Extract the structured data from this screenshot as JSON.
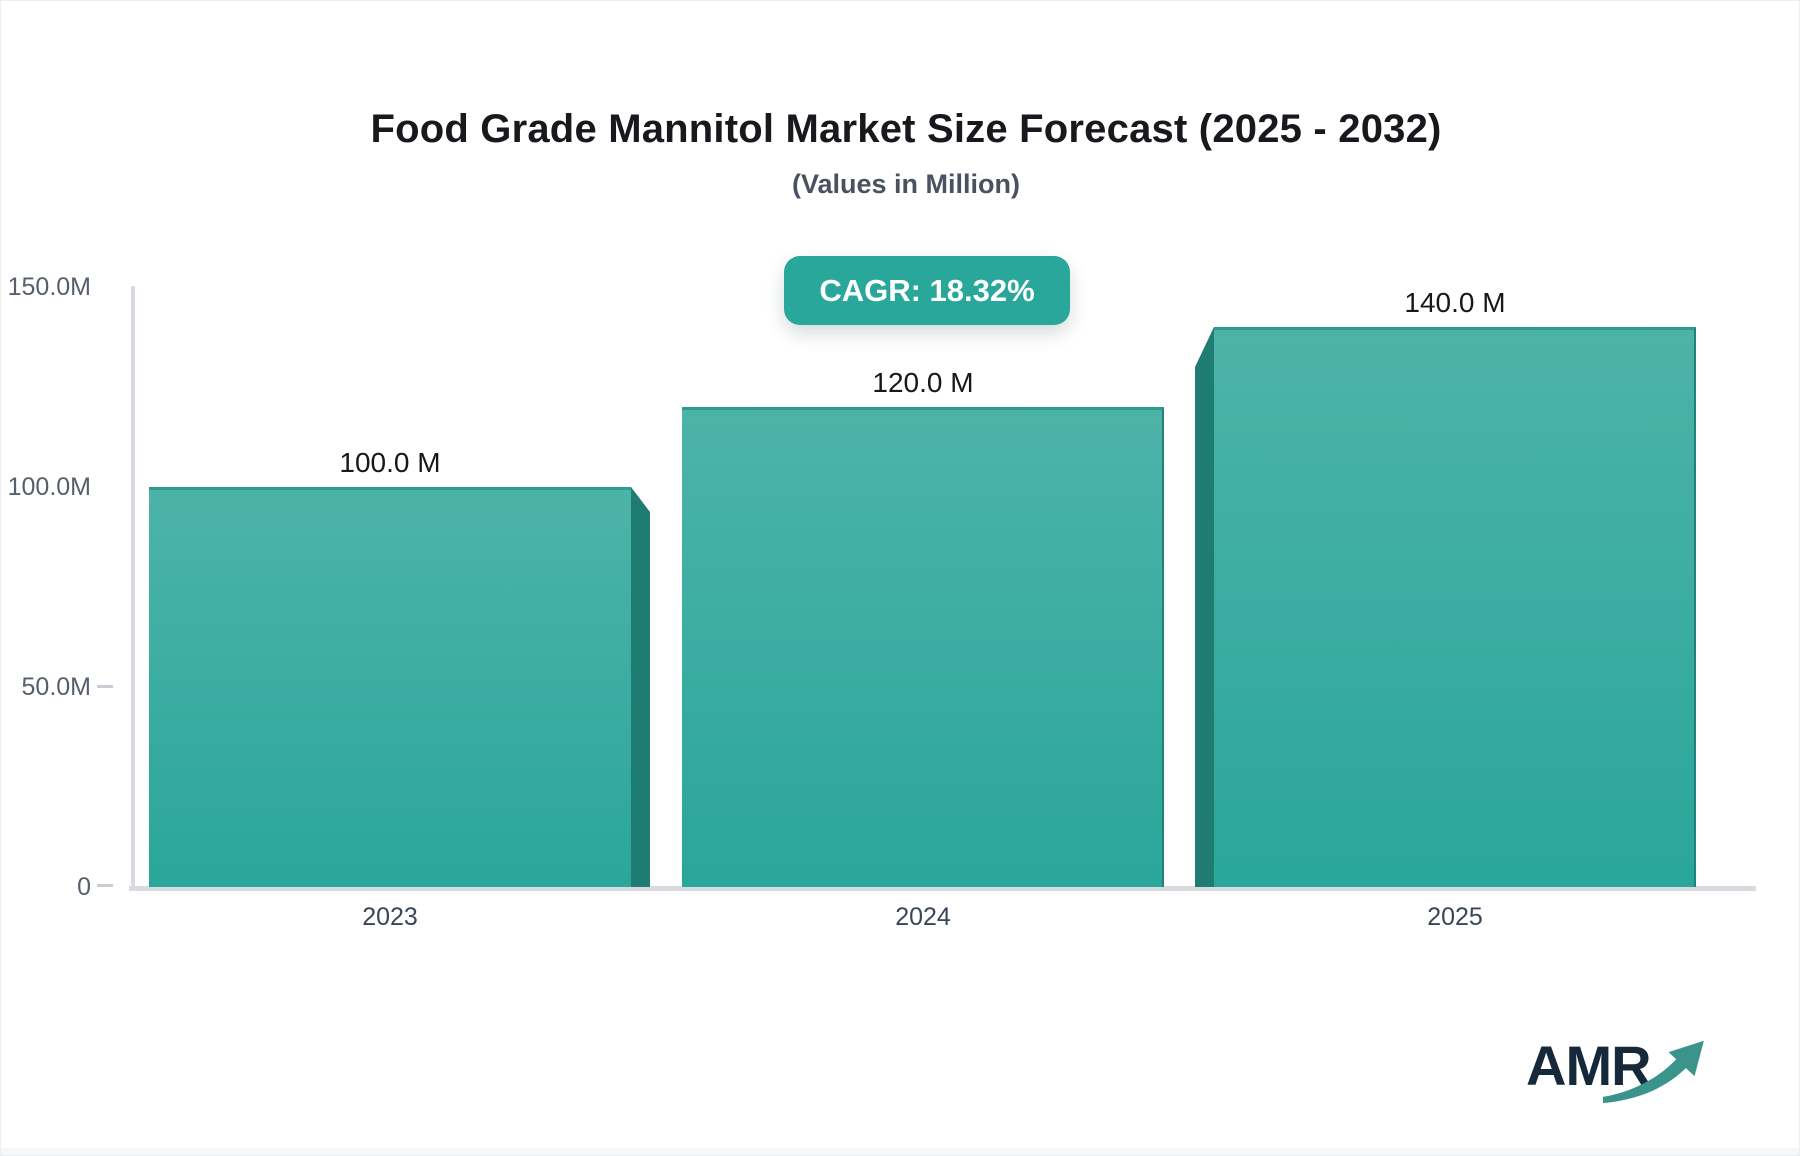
{
  "header": {
    "title": "Food Grade Mannitol Market Size Forecast (2025 - 2032)",
    "subtitle": "(Values in Million)",
    "cagr_badge": "CAGR: 18.32%"
  },
  "chart_data": {
    "type": "bar",
    "title": "Food Grade Mannitol Market Size Forecast (2025 - 2032)",
    "subtitle": "(Values in Million)",
    "unit": "Million",
    "cagr_percent": "18.32%",
    "categories": [
      "2023",
      "2024",
      "2025"
    ],
    "values": [
      100,
      120,
      140
    ],
    "value_labels": [
      "100.0 M",
      "120.0 M",
      "140.0 M"
    ],
    "ylim": [
      0,
      150
    ],
    "y_ticks": [
      "150.0M",
      "100.0M",
      "50.0M",
      "0"
    ],
    "grid": false,
    "legend": "none",
    "bar_style": "3d-gradient-teal"
  },
  "logo": {
    "text": "AMR",
    "arrow_icon": "growth-arrow-icon"
  },
  "colors": {
    "accent": "#2aa79b",
    "bar_top": "#4db3a9",
    "bar_bottom": "#2aa69a",
    "bar_side": "#1e7c72",
    "bar_edge": "#2f9a8f",
    "title_text": "#17191c",
    "subtitle_text": "#4a5160",
    "tick_text": "#565f6d",
    "xlabel_text": "#3b4559",
    "value_text": "#15181c",
    "axis_line": "#d7dade",
    "logo_navy": "#16293b",
    "logo_arrow": "#3a948c",
    "page_border": "#eceef0",
    "bottom_strip": "#f5f7f8"
  }
}
